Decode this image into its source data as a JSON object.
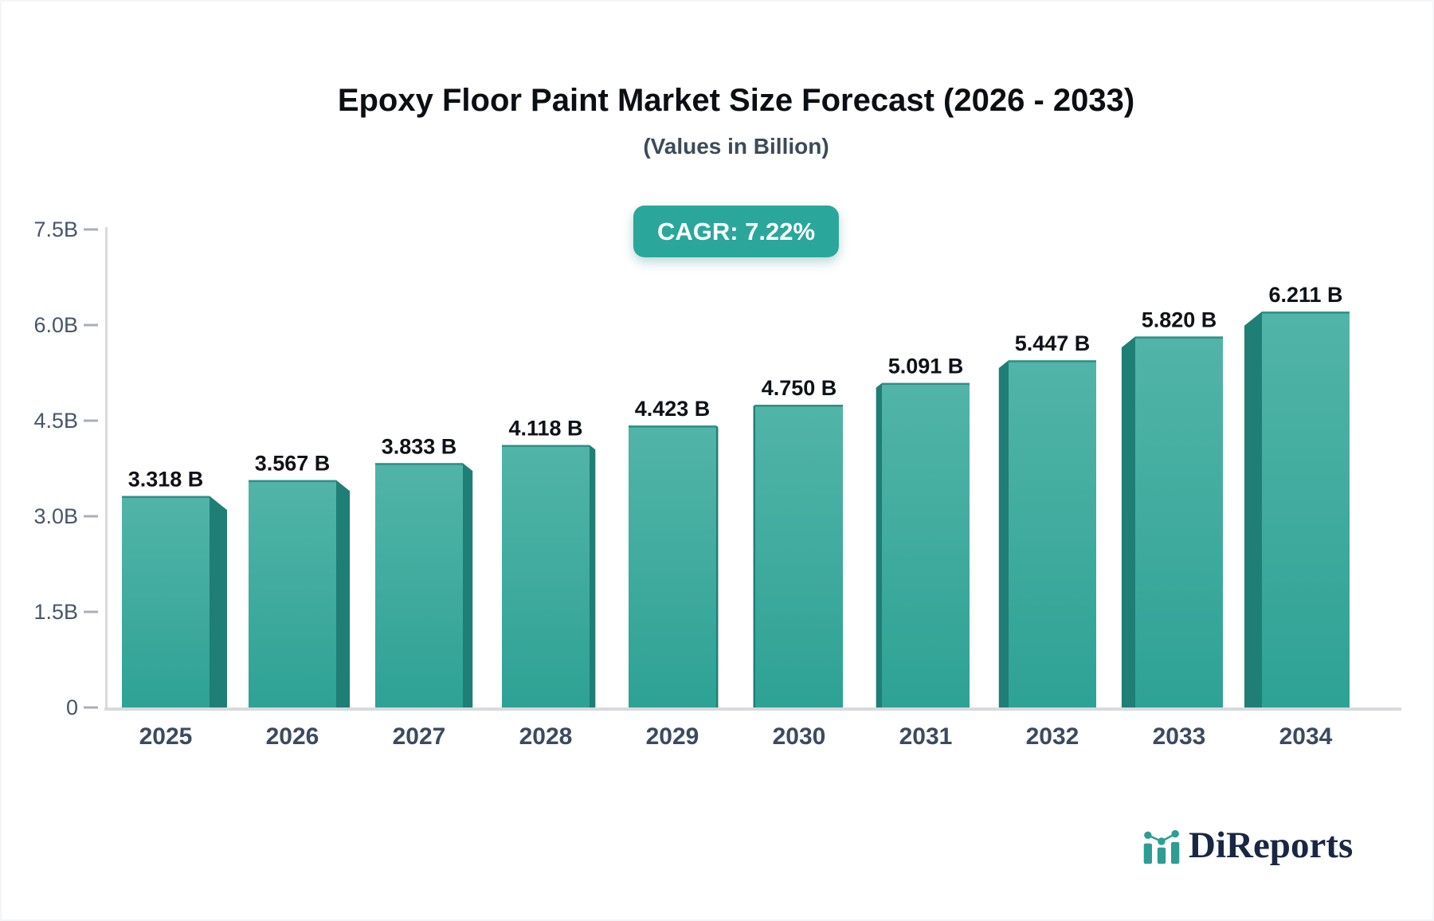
{
  "header": {
    "title": "Epoxy Floor Paint Market Size Forecast (2026 - 2033)",
    "subtitle": "(Values in Billion)"
  },
  "badge": {
    "label": "CAGR: 7.22%",
    "background": "#2AA79A",
    "text_color": "#FFFFFF"
  },
  "chart_data": {
    "type": "bar",
    "title": "Epoxy Floor Paint Market Size Forecast (2026 - 2033)",
    "subtitle": "(Values in Billion)",
    "cagr_label": "CAGR: 7.22%",
    "categories": [
      "2025",
      "2026",
      "2027",
      "2028",
      "2029",
      "2030",
      "2031",
      "2032",
      "2033",
      "2034"
    ],
    "values": [
      3.318,
      3.567,
      3.833,
      4.118,
      4.423,
      4.75,
      5.091,
      5.447,
      5.82,
      6.211
    ],
    "value_labels": [
      "3.318 B",
      "3.567 B",
      "3.833 B",
      "4.118 B",
      "4.423 B",
      "4.750 B",
      "5.091 B",
      "5.447 B",
      "5.820 B",
      "6.211 B"
    ],
    "unit": "Billion",
    "ylim": [
      0,
      7.5
    ],
    "yticks": [
      0,
      1.5,
      3.0,
      4.5,
      6.0,
      7.5
    ],
    "ytick_labels": [
      "0",
      "1.5B",
      "3.0B",
      "4.5B",
      "6.0B",
      "7.5B"
    ],
    "grid": false,
    "legend": null,
    "style": "3d-perspective-bars",
    "bar_face_top_color": "#52B4A8",
    "bar_face_bottom_color": "#2EA295",
    "bar_side_color": "#1F7E76",
    "bar_top_edge_color": "#2D9186",
    "axis_color": "#D7DADE",
    "tick_mark_color": "#A9AFB8",
    "ytick_label_color": "#475669",
    "xtick_label_color": "#3B4A5E",
    "value_label_color": "#0E1116"
  },
  "logo": {
    "text": "DiReports",
    "text_color": "#1A2743",
    "icon": "bar-chart-logo-icon",
    "icon_color": "#2E9D93"
  }
}
